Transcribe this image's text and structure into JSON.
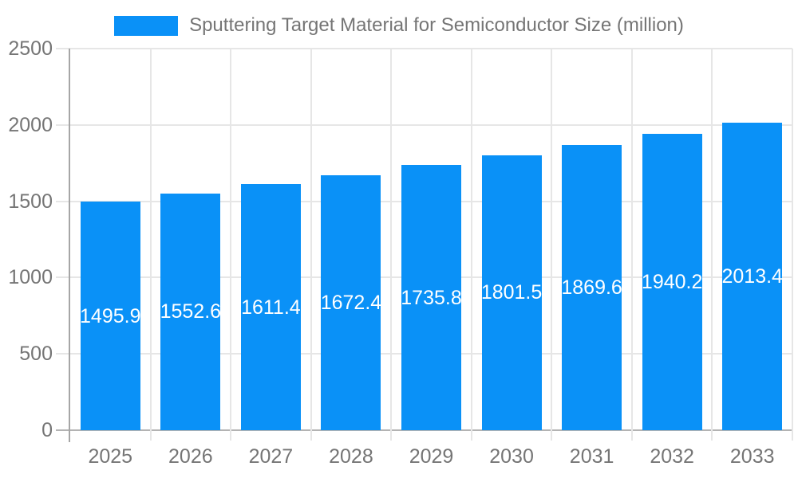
{
  "legend": {
    "label": "Sputtering Target Material for Semiconductor Size (million)"
  },
  "chart_data": {
    "type": "bar",
    "title": "",
    "xlabel": "",
    "ylabel": "",
    "categories": [
      "2025",
      "2026",
      "2027",
      "2028",
      "2029",
      "2030",
      "2031",
      "2032",
      "2033"
    ],
    "series": [
      {
        "name": "Sputtering Target Material for Semiconductor Size (million)",
        "values": [
          1495.9,
          1552.6,
          1611.4,
          1672.4,
          1735.8,
          1801.5,
          1869.6,
          1940.2,
          2013.4
        ]
      }
    ],
    "value_labels": [
      "1495.9",
      "1552.6",
      "1611.4",
      "1672.4",
      "1735.8",
      "1801.5",
      "1869.6",
      "1940.2",
      "2013.4"
    ],
    "ylim": [
      0,
      2500
    ],
    "yticks": [
      0,
      500,
      1000,
      1500,
      2000,
      2500
    ],
    "grid": true,
    "legend_position": "top-center"
  },
  "colors": {
    "bar": "#0a91f7",
    "gridline": "#e6e6e6",
    "baseline": "#b3b3b3",
    "axis": "#a6a6a6",
    "text": "#757575",
    "value_label": "#ffffff",
    "background": "#ffffff"
  }
}
